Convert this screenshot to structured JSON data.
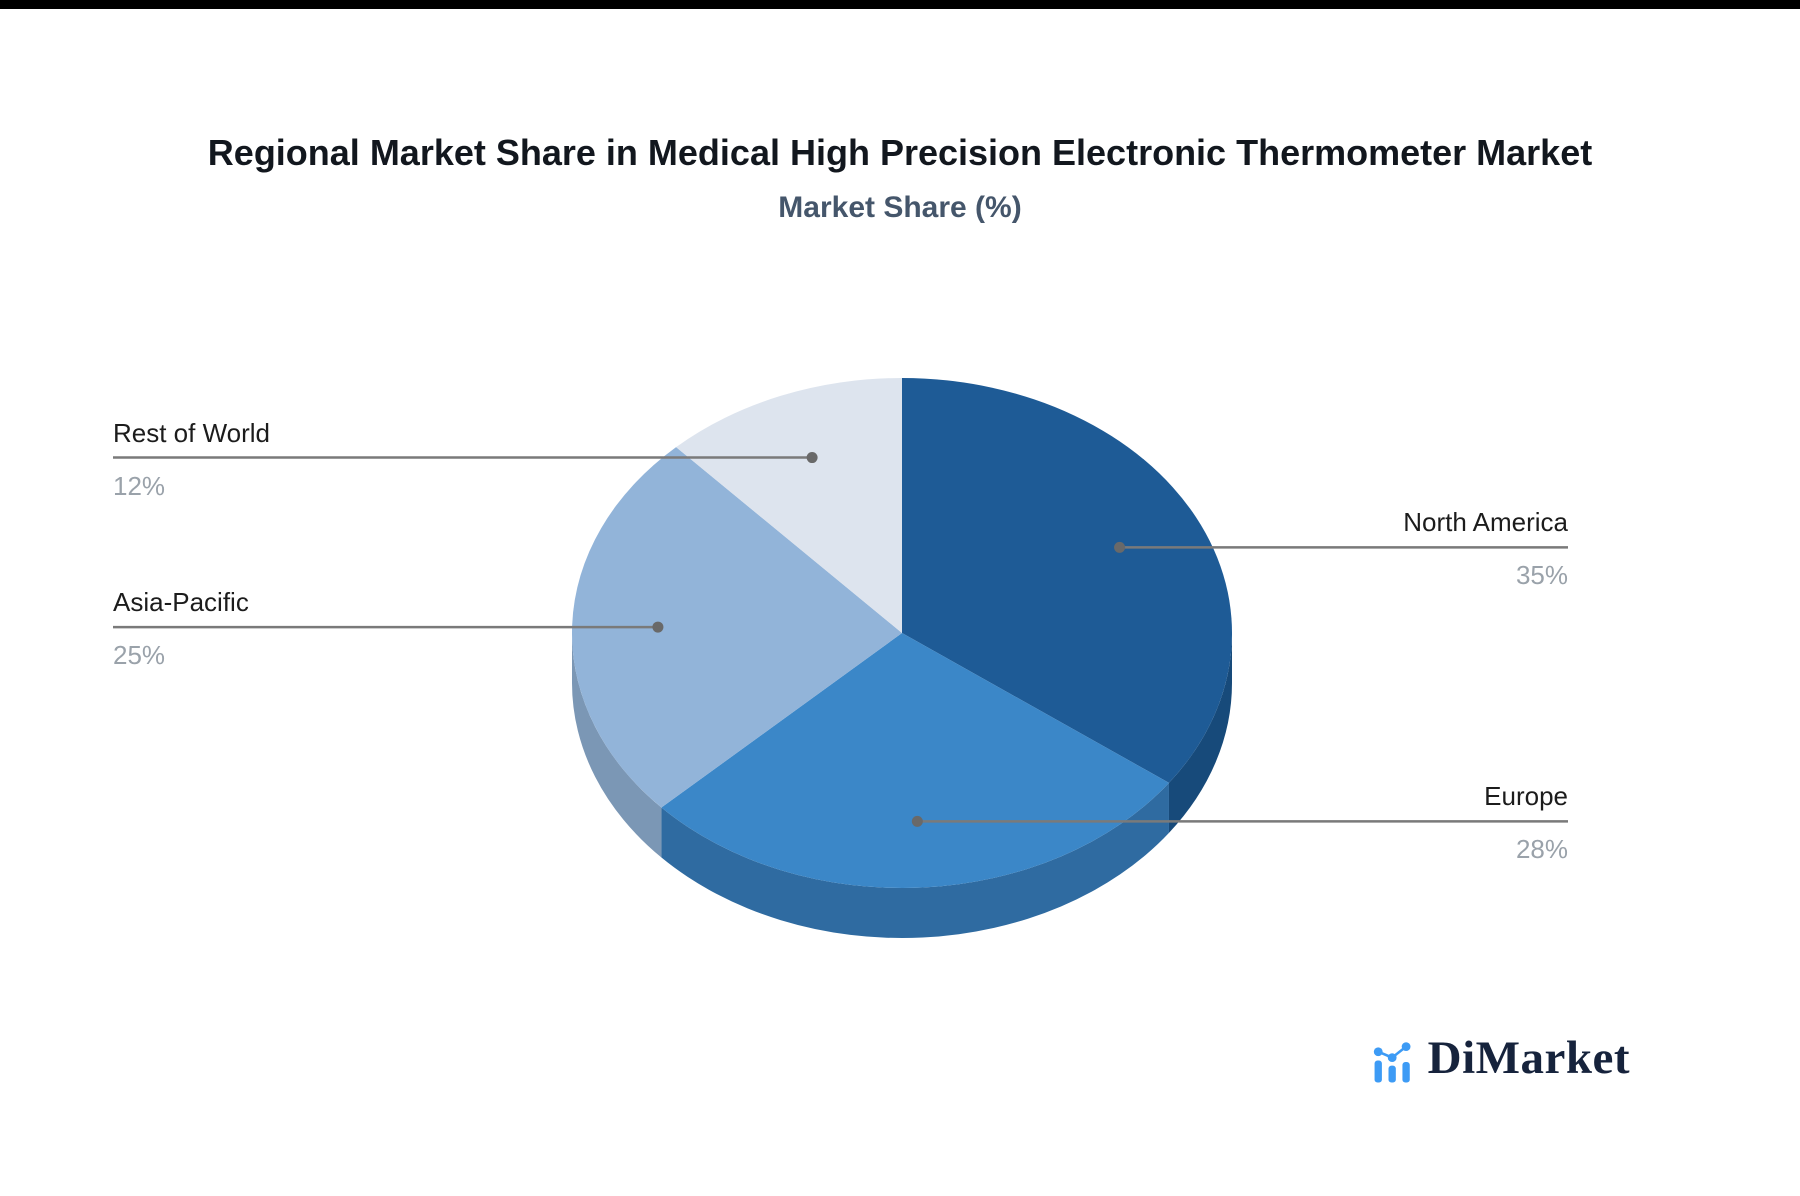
{
  "header": {
    "title": "Regional Market Share in Medical High Precision Electronic Thermometer Market",
    "subtitle": "Market Share (%)"
  },
  "chart_data": {
    "type": "pie",
    "style": "3d",
    "title": "Regional Market Share in Medical High Precision Electronic Thermometer Market",
    "subtitle": "Market Share (%)",
    "unit": "%",
    "start_angle": "12-oclock-clockwise",
    "legend_position": "callouts",
    "labels": [
      "North America",
      "Europe",
      "Asia-Pacific",
      "Rest of World"
    ],
    "values": [
      35,
      28,
      25,
      12
    ],
    "value_labels": [
      "35%",
      "28%",
      "25%",
      "12%"
    ],
    "slice_colors": [
      "#1e5b96",
      "#3b87c8",
      "#92b4d9",
      "#dde4ee"
    ],
    "slice_side_colors": [
      "#174a7a",
      "#2f6ba1",
      "#7b97b5",
      "#c9d3e2"
    ],
    "callout_sides": [
      "right",
      "right",
      "left",
      "left"
    ],
    "leader_line_color": "#7a7a7a",
    "dot_color": "#696969"
  },
  "footer": {
    "logo_text": "DiMarket",
    "logo_icon": "bar-chart-logo-icon"
  }
}
